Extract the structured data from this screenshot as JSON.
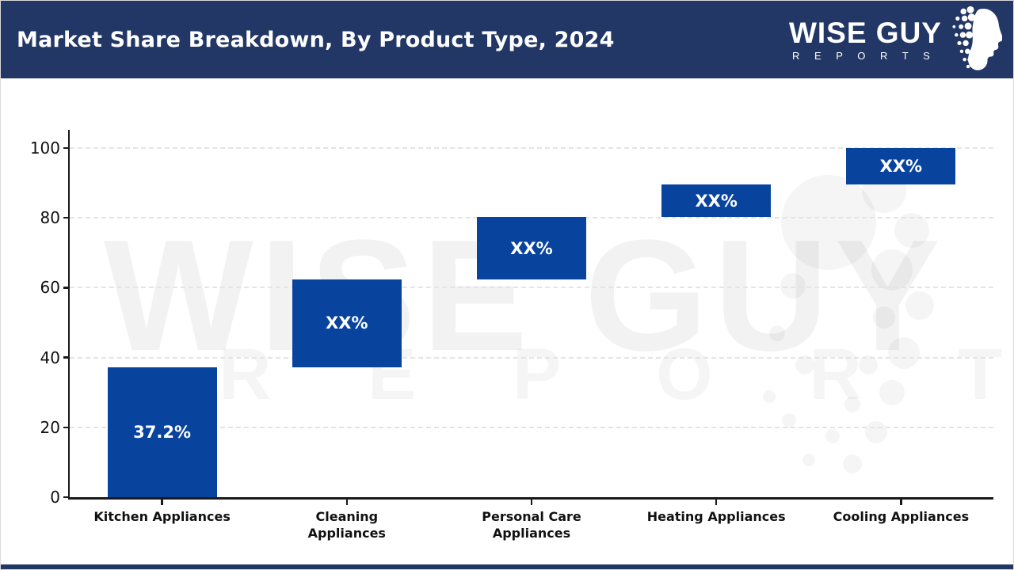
{
  "header": {
    "title": "Market Share Breakdown, By Product Type, 2024",
    "logo": {
      "wordmark": "WISE GUY",
      "subtext": "R E P O R T S"
    }
  },
  "watermark": {
    "line1": "WISE GUY",
    "line2": "R E P O R T S"
  },
  "colors": {
    "header_bg": "#223765",
    "bar": "#08439E",
    "grid": "#e4e4e4",
    "axis": "#1a1a1a",
    "value_label": "#ffffff",
    "page_border": "#d9d9d9"
  },
  "chart_data": {
    "type": "bar",
    "subtype": "waterfall",
    "title": "Market Share Breakdown, By Product Type, 2024",
    "categories": [
      "Kitchen Appliances",
      "Cleaning Appliances",
      "Personal Care Appliances",
      "Heating Appliances",
      "Cooling Appliances"
    ],
    "category_label_lines": [
      [
        "Kitchen Appliances"
      ],
      [
        "Cleaning",
        "Appliances"
      ],
      [
        "Personal Care",
        "Appliances"
      ],
      [
        "Heating Appliances"
      ],
      [
        "Cooling Appliances"
      ]
    ],
    "bars": [
      {
        "category": "Kitchen Appliances",
        "label": "37.2%",
        "start": 0,
        "end": 37.2
      },
      {
        "category": "Cleaning Appliances",
        "label": "XX%",
        "start": 37.2,
        "end": 62.4
      },
      {
        "category": "Personal Care Appliances",
        "label": "XX%",
        "start": 62.4,
        "end": 80.2
      },
      {
        "category": "Heating Appliances",
        "label": "XX%",
        "start": 80.2,
        "end": 89.6
      },
      {
        "category": "Cooling Appliances",
        "label": "XX%",
        "start": 89.6,
        "end": 100
      }
    ],
    "yticks": [
      0,
      20,
      40,
      60,
      80,
      100
    ],
    "ylim": [
      0,
      105
    ],
    "xlabel": "",
    "ylabel": "",
    "grid": "dashed-horizontal",
    "legend": "none",
    "bar_color": "#08439E",
    "value_label_color": "#ffffff"
  }
}
